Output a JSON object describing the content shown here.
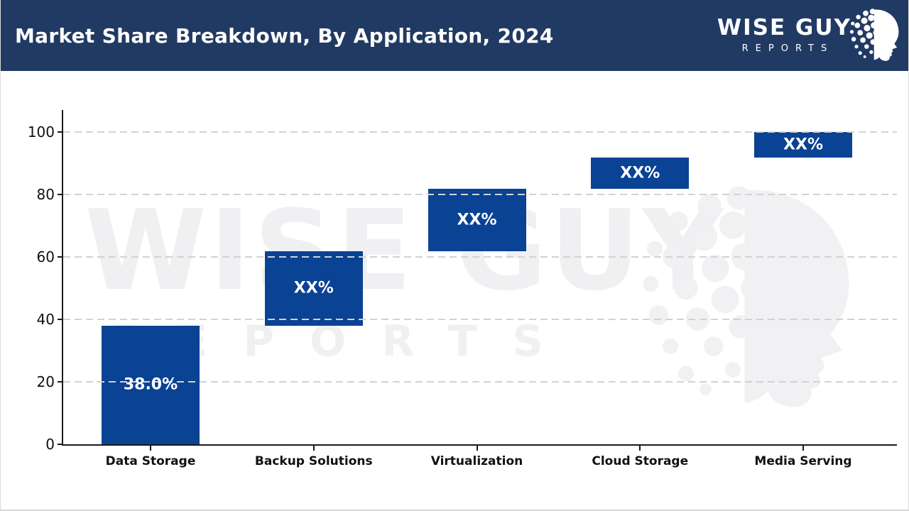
{
  "page": {
    "background_color": "#ffffff",
    "border_color": "#d9d9d9"
  },
  "header": {
    "background_color": "#213a63",
    "title": "Market Share Breakdown, By Application, 2024",
    "logo": {
      "line1": "WISE GUY",
      "line2": "REPORTS",
      "icon": "face-profile-dots-icon",
      "text_color": "#ffffff"
    }
  },
  "watermark": {
    "line1": "WISE GUY",
    "line2": "REPORTS",
    "color": "#f0f0f2"
  },
  "chart_data": {
    "type": "bar",
    "variant": "waterfall",
    "title": "Market Share Breakdown, By Application, 2024",
    "categories": [
      "Data Storage",
      "Backup Solutions",
      "Virtualization",
      "Cloud Storage",
      "Media Serving"
    ],
    "bar_start": [
      0,
      38.0,
      61.8,
      81.8,
      91.8
    ],
    "bar_end": [
      38.0,
      61.8,
      81.8,
      91.8,
      100.0
    ],
    "values": [
      38.0,
      23.8,
      20.0,
      10.0,
      8.2
    ],
    "bar_labels": [
      "38.0%",
      "XX%",
      "XX%",
      "XX%",
      "XX%"
    ],
    "yticks": [
      0,
      20,
      40,
      60,
      80,
      100
    ],
    "ylim": [
      0,
      107
    ],
    "xlabel": "",
    "ylabel": "",
    "grid": "horizontal-dashed",
    "grid_above_bars": true,
    "legend": "none",
    "bar_color": "#0a4294",
    "bar_label_color": "#ffffff",
    "axis_color": "#1a1a1a",
    "gridline_color": "#d2d2d2",
    "tick_label_color": "#111111"
  }
}
